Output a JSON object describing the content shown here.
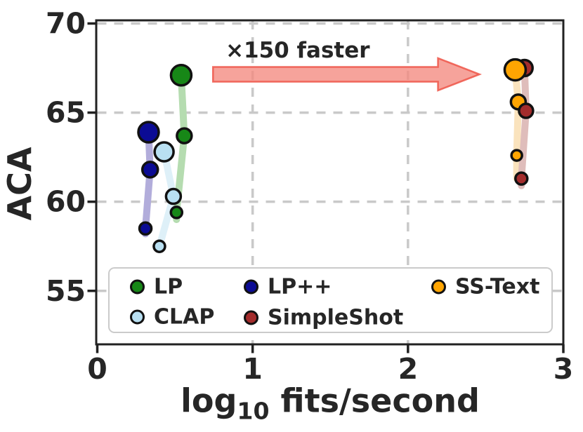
{
  "chart_data": {
    "type": "scatter",
    "title": "",
    "xlabel": "log₁₀ fits/second",
    "xlabel_parts": {
      "pre": "log",
      "sub": "10",
      "post": " fits/second"
    },
    "ylabel": "ACA",
    "xlim": [
      0,
      3
    ],
    "ylim": [
      52,
      70
    ],
    "xticks": [
      0,
      1,
      2,
      3
    ],
    "yticks": [
      70,
      65,
      60,
      55
    ],
    "x_gridlines": [
      1,
      2
    ],
    "y_gridlines": [
      70,
      65,
      60,
      55
    ],
    "grid_style": "dashed",
    "legend_position": "lower center",
    "series": [
      {
        "name": "LP",
        "color": "#178717",
        "trail_color": "#b5dcb0",
        "trail_end_y": 59.0,
        "points": [
          {
            "x": 0.54,
            "y": 67.1,
            "r": 14.5
          },
          {
            "x": 0.56,
            "y": 63.7,
            "r": 10.5
          },
          {
            "x": 0.51,
            "y": 59.4,
            "r": 8
          }
        ]
      },
      {
        "name": "LP++",
        "color": "#0b0b94",
        "trail_color": "#b2addb",
        "trail_end_y": 58.2,
        "points": [
          {
            "x": 0.33,
            "y": 63.9,
            "r": 14.5
          },
          {
            "x": 0.34,
            "y": 61.8,
            "r": 11
          },
          {
            "x": 0.31,
            "y": 58.5,
            "r": 8.5
          }
        ]
      },
      {
        "name": "CLAP",
        "color": "#b9e0f2",
        "trail_color": "#def0f8",
        "trail_end_y": 57.3,
        "points": [
          {
            "x": 0.43,
            "y": 62.8,
            "r": 13.5
          },
          {
            "x": 0.49,
            "y": 60.3,
            "r": 10.5
          },
          {
            "x": 0.4,
            "y": 57.5,
            "r": 8
          }
        ]
      },
      {
        "name": "SimpleShot",
        "color": "#a32c2c",
        "trail_color": "#dfbdbb",
        "trail_end_y": 60.9,
        "points": [
          {
            "x": 2.75,
            "y": 67.5,
            "r": 11.5
          },
          {
            "x": 2.76,
            "y": 65.1,
            "r": 10
          },
          {
            "x": 2.73,
            "y": 61.3,
            "r": 8.5
          }
        ]
      },
      {
        "name": "SS-Text",
        "color": "#ffa502",
        "trail_color": "#fae3bd",
        "trail_end_y": 61.3,
        "points": [
          {
            "x": 2.69,
            "y": 67.4,
            "r": 15
          },
          {
            "x": 2.71,
            "y": 65.6,
            "r": 10.5
          },
          {
            "x": 2.7,
            "y": 62.6,
            "r": 7.5
          }
        ]
      }
    ],
    "annotation": {
      "text": "×150 faster",
      "text_x": 1.29,
      "text_y": 68.5,
      "arrow_from_x": 0.745,
      "arrow_to_x": 2.46,
      "arrow_y": 67.15,
      "arrow_fill": "#f4897f",
      "arrow_stroke": "#ef5548"
    }
  },
  "legend": {
    "items": [
      {
        "label": "LP",
        "color": "#178717"
      },
      {
        "label": "CLAP",
        "color": "#b9e0f2"
      },
      {
        "label": "LP++",
        "color": "#0b0b94"
      },
      {
        "label": "SimpleShot",
        "color": "#a32c2c"
      },
      {
        "label": "SS-Text",
        "color": "#ffa502"
      }
    ]
  },
  "colors": {
    "grid": "#c9c9c9",
    "spine": "#212121",
    "text": "#262626",
    "marker_edge": "#111111"
  }
}
